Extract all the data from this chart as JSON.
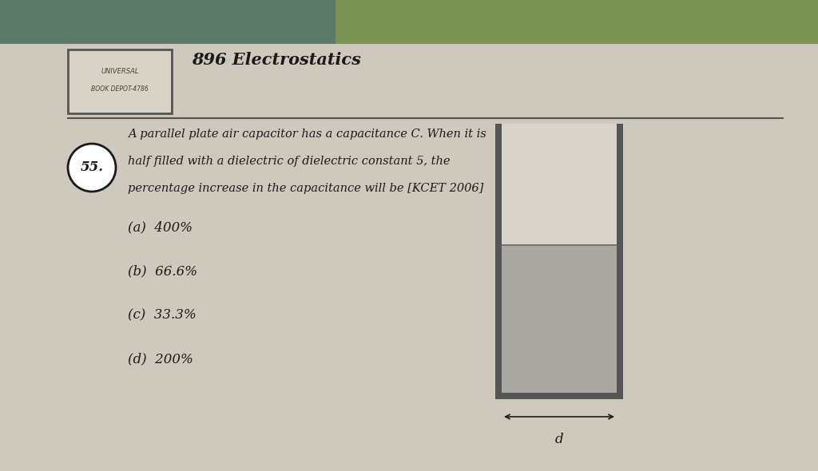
{
  "bg_color": "#ccc8be",
  "page_color": "#cec9bc",
  "title": "896 Electrostatics",
  "title_fontsize": 15,
  "header_box_fill": "#cbc6b8",
  "header_box_edge": "#555550",
  "header_text1": "UNIVERSAL",
  "header_text2": "BOOK DEPOT-4786",
  "q_num": "55.",
  "q_line1": "A parallel plate air capacitor has a capacitance C. When it is",
  "q_line2": "half filled with a dielectric of dielectric constant 5, the",
  "q_line3": "percentage increase in the capacitance will be",
  "citation": " [KCET 2006]",
  "options": [
    "(a)  400%",
    "(b)  66.6%",
    "(c)  33.3%",
    "(d)  200%"
  ],
  "text_color": "#1a1a1a",
  "cap_plate_color": "#555555",
  "cap_top_fill": "#d8d4cc",
  "cap_bot_fill": "#a8a8a0",
  "label_d": "d",
  "foliage_green": "#6a8a40",
  "foliage_blue": "#4a6a7a",
  "sep_line_color": "#555550"
}
